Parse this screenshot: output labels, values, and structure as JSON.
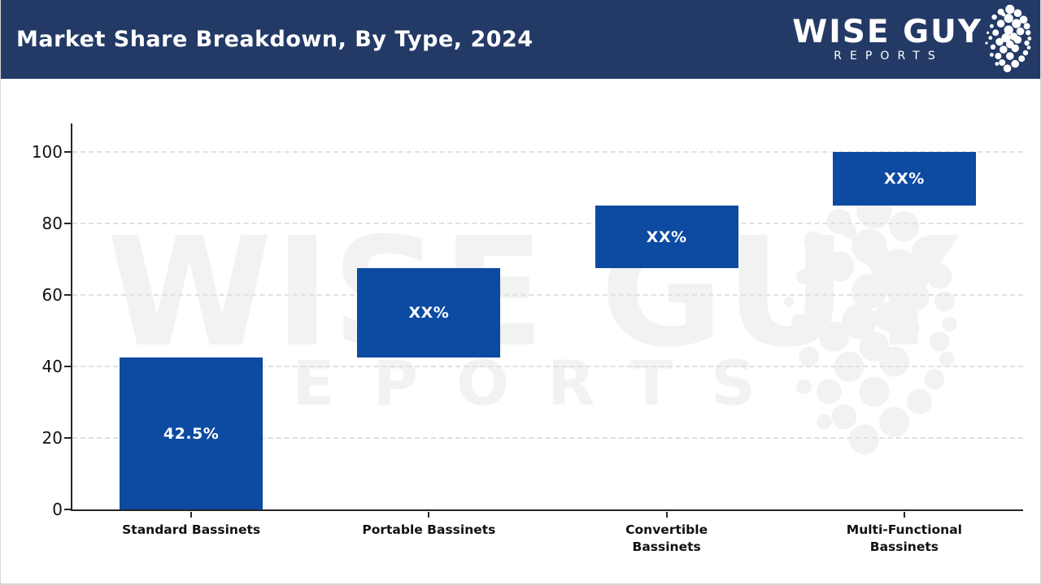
{
  "header": {
    "title": "Market Share Breakdown, By Type, 2024",
    "logo": {
      "line1": "WISE GUY",
      "line2": "REPORTS"
    }
  },
  "watermark": {
    "line1": "WISE GUY",
    "line2": "REPORTS"
  },
  "chart_data": {
    "type": "bar",
    "subtype": "floating-waterfall",
    "title": "Market Share Breakdown, By Type, 2024",
    "xlabel": "",
    "ylabel": "",
    "categories": [
      "Standard Bassinets",
      "Portable Bassinets",
      "Convertible\nBassinets",
      "Multi-Functional\nBassinets"
    ],
    "bars": [
      {
        "category": "Standard Bassinets",
        "label": "42.5%",
        "start": 0,
        "end": 42.5
      },
      {
        "category": "Portable Bassinets",
        "label": "XX%",
        "start": 42.5,
        "end": 67.5
      },
      {
        "category": "Convertible Bassinets",
        "label": "XX%",
        "start": 67.5,
        "end": 85
      },
      {
        "category": "Multi-Functional Bassinets",
        "label": "XX%",
        "start": 85,
        "end": 100
      }
    ],
    "yticks": [
      0,
      20,
      40,
      60,
      80,
      100
    ],
    "ylim": [
      0,
      108
    ],
    "grid": "horizontal-dashed",
    "legend": "none",
    "colors": {
      "bar": "#0d4aa1",
      "bar_label": "#ffffff",
      "axis": "#262626",
      "grid": "#e0e0e0",
      "header_bg": "#233a66",
      "watermark": "#f2f2f2"
    }
  }
}
